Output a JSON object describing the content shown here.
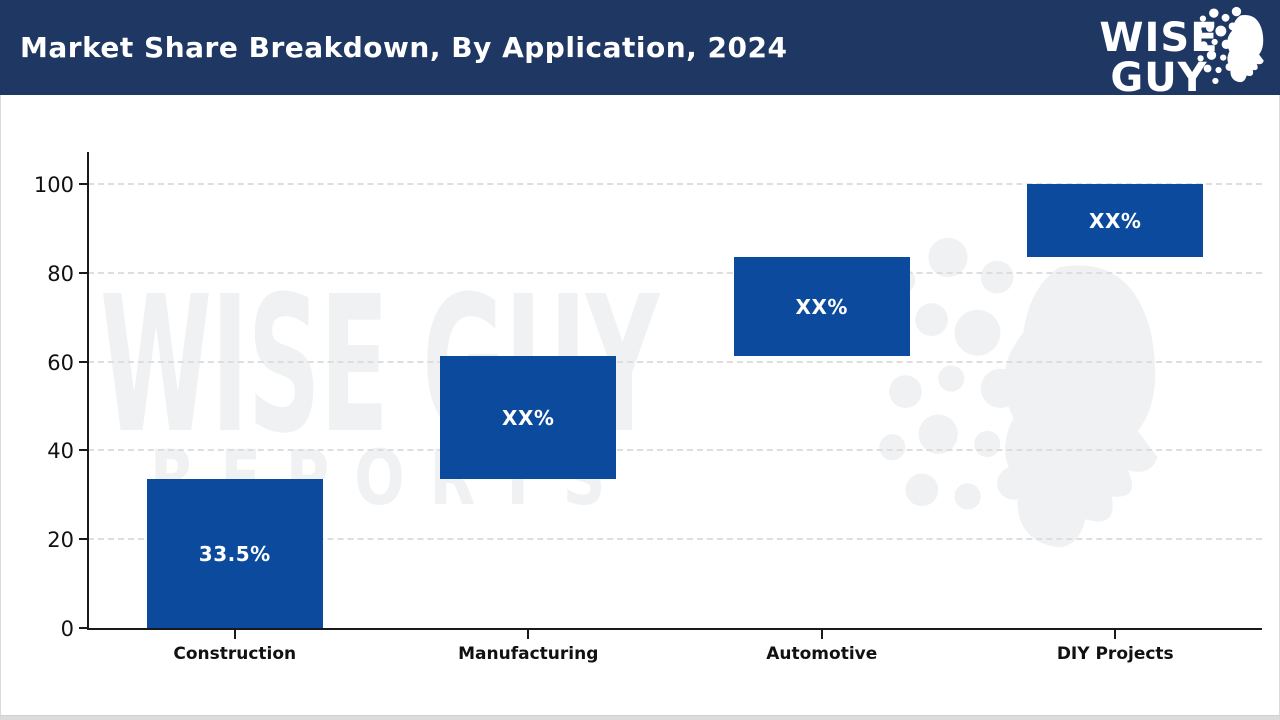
{
  "header": {
    "title": "Market Share Breakdown, By Application, 2024"
  },
  "logo": {
    "line1": "WISE GUY",
    "line2": "REPORTS"
  },
  "watermark": {
    "line1": "WISE GUY",
    "line2": "REPORTS"
  },
  "colors": {
    "header_bg": "#1f3763",
    "bar": "#0b4a9c",
    "grid": "#dedede",
    "axis": "#1a1a1a",
    "bar_label": "#ffffff",
    "watermark": "#f0f1f3",
    "page_edge": "#dcdcdc"
  },
  "chart_data": {
    "type": "bar",
    "subtype": "waterfall",
    "title": "Market Share Breakdown, By Application, 2024",
    "categories": [
      "Construction",
      "Manufacturing",
      "Automotive",
      "DIY Projects"
    ],
    "series": [
      {
        "name": "Market Share (%)",
        "segments": [
          {
            "category": "Construction",
            "start": 0,
            "end": 33.5,
            "label": "33.5%"
          },
          {
            "category": "Manufacturing",
            "start": 33.5,
            "end": 61.3,
            "label": "XX%"
          },
          {
            "category": "Automotive",
            "start": 61.3,
            "end": 83.5,
            "label": "XX%"
          },
          {
            "category": "DIY Projects",
            "start": 83.5,
            "end": 100,
            "label": "XX%"
          }
        ]
      }
    ],
    "xlabel": "",
    "ylabel": "",
    "ylim": [
      0,
      100
    ],
    "yticks": [
      0,
      20,
      40,
      60,
      80,
      100
    ],
    "grid": "horizontal-dashed",
    "legend": "none"
  }
}
